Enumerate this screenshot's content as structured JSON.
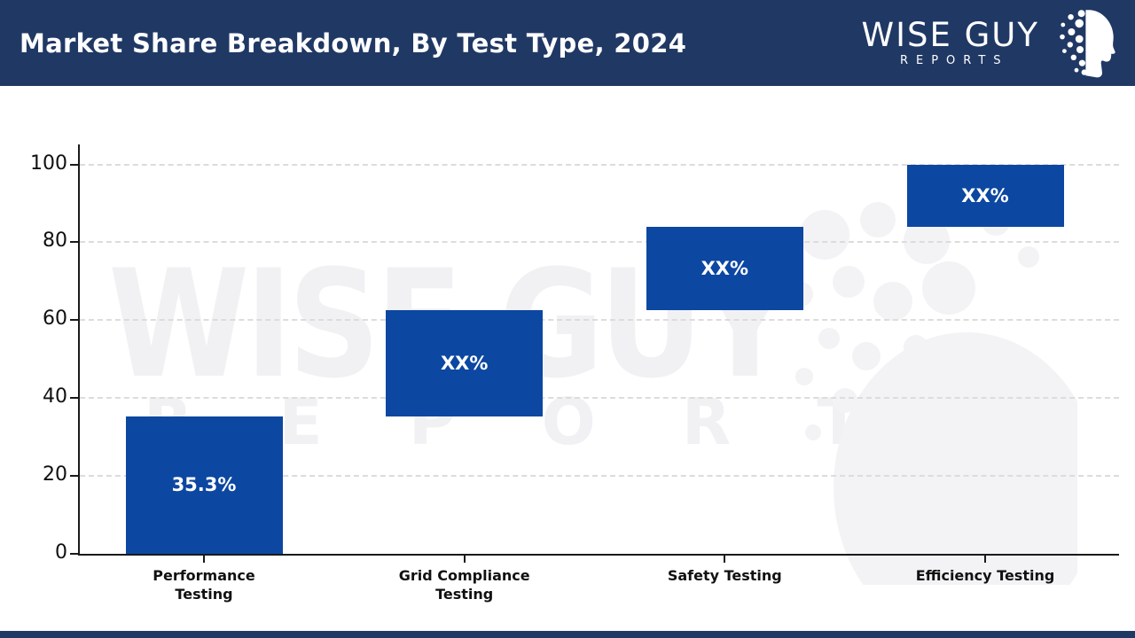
{
  "header": {
    "title": "Market Share Breakdown, By Test Type, 2024",
    "logo_line1": "WISE GUY",
    "logo_line2": "REPORTS",
    "bg_color": "#203864"
  },
  "watermark": {
    "line1": "WISE GUY",
    "line2": "R E P O R T S"
  },
  "chart_data": {
    "type": "bar",
    "variant": "waterfall",
    "title": "Market Share Breakdown, By Test Type, 2024",
    "categories": [
      "Performance Testing",
      "Grid Compliance Testing",
      "Safety Testing",
      "Efficiency Testing"
    ],
    "category_label_lines": [
      [
        "Performance",
        "Testing"
      ],
      [
        "Grid Compliance",
        "Testing"
      ],
      [
        "Safety Testing"
      ],
      [
        "Efficiency Testing"
      ]
    ],
    "segments": [
      {
        "category": "Performance Testing",
        "start": 0,
        "end": 35.3,
        "label": "35.3%"
      },
      {
        "category": "Grid Compliance Testing",
        "start": 35.3,
        "end": 62.5,
        "label": "XX%"
      },
      {
        "category": "Safety Testing",
        "start": 62.5,
        "end": 84.0,
        "label": "XX%"
      },
      {
        "category": "Efficiency Testing",
        "start": 84.0,
        "end": 100.0,
        "label": "XX%"
      }
    ],
    "values_increment": [
      35.3,
      27.2,
      21.5,
      16.0
    ],
    "bar_labels": [
      "35.3%",
      "XX%",
      "XX%",
      "XX%"
    ],
    "xlabel": "",
    "ylabel": "",
    "ylim": [
      0,
      100
    ],
    "yticks": [
      0,
      20,
      40,
      60,
      80,
      100
    ],
    "grid": "horizontal dashed",
    "legend": "none",
    "bar_color": "#0c47a1",
    "bar_label_color": "#ffffff",
    "axis_color": "#1a1a1a",
    "gridline_color": "#dcdcdc"
  },
  "footer": {
    "bg_color": "#203864"
  }
}
